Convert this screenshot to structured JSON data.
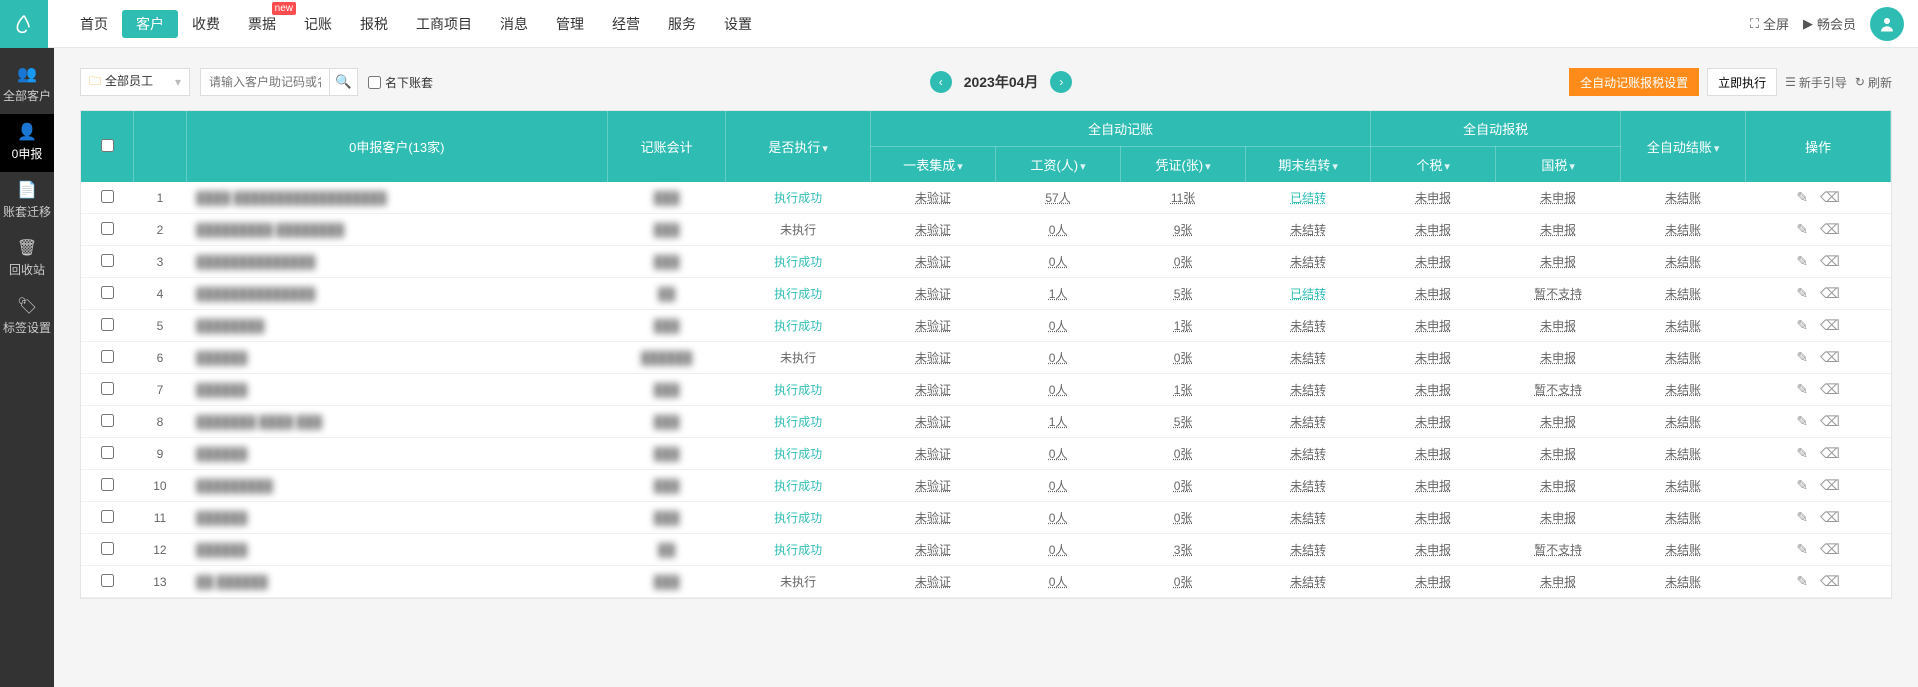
{
  "colors": {
    "primary": "#2fbdb3",
    "accent": "#ff8c1a",
    "sidebar_bg": "#333333",
    "badge": "#ff4d4f"
  },
  "topnav": {
    "items": [
      "首页",
      "客户",
      "收费",
      "票据",
      "记账",
      "报税",
      "工商项目",
      "消息",
      "管理",
      "经营",
      "服务",
      "设置"
    ],
    "active_index": 1,
    "new_badge_index": 3,
    "new_badge_text": "new",
    "fullscreen": "全屏",
    "member": "畅会员"
  },
  "sidebar": {
    "items": [
      {
        "icon": "👥",
        "label": "全部客户"
      },
      {
        "icon": "👤",
        "label": "0申报"
      },
      {
        "icon": "📄",
        "label": "账套迁移"
      },
      {
        "icon": "🗑",
        "label": "回收站"
      },
      {
        "icon": "🏷",
        "label": "标签设置"
      }
    ],
    "active_index": 1
  },
  "toolbar": {
    "employee_select": "全部员工",
    "search_placeholder": "请输入客户助记码或名称",
    "under_name_checkbox": "名下账套",
    "period": "2023年04月",
    "auto_setting_btn": "全自动记账报税设置",
    "exec_now_btn": "立即执行",
    "newbie_guide": "新手引导",
    "refresh": "刷新"
  },
  "table": {
    "header": {
      "customer": "0申报客户(13家)",
      "accountant": "记账会计",
      "exec": "是否执行",
      "group_jz": "全自动记账",
      "group_bs": "全自动报税",
      "group_jiezhang": "全自动结账",
      "op": "操作",
      "sub": {
        "yibiao": "一表集成",
        "gongzi": "工资(人)",
        "pingzheng": "凭证(张)",
        "qimo": "期末结转",
        "geshui": "个税",
        "guoshui": "国税"
      }
    },
    "rows": [
      {
        "idx": 1,
        "name": "████ ██████████████████",
        "acct": "███",
        "exec": "执行成功",
        "exec_cls": "status-success",
        "yibiao": "未验证",
        "gz": "57人",
        "pz": "11张",
        "qimo": "已结转",
        "qimo_cls": "status-done",
        "gs": "未申报",
        "guo": "未申报",
        "jz": "未结账"
      },
      {
        "idx": 2,
        "name": "█████████ ████████",
        "acct": "███",
        "exec": "未执行",
        "exec_cls": "",
        "yibiao": "未验证",
        "gz": "0人",
        "pz": "9张",
        "qimo": "未结转",
        "qimo_cls": "cell-link",
        "gs": "未申报",
        "guo": "未申报",
        "jz": "未结账"
      },
      {
        "idx": 3,
        "name": "██████████████",
        "acct": "███",
        "exec": "执行成功",
        "exec_cls": "status-success",
        "yibiao": "未验证",
        "gz": "0人",
        "pz": "0张",
        "qimo": "未结转",
        "qimo_cls": "cell-link",
        "gs": "未申报",
        "guo": "未申报",
        "jz": "未结账"
      },
      {
        "idx": 4,
        "name": "██████████████",
        "acct": "██",
        "exec": "执行成功",
        "exec_cls": "status-success",
        "yibiao": "未验证",
        "gz": "1人",
        "pz": "5张",
        "qimo": "已结转",
        "qimo_cls": "status-done",
        "gs": "未申报",
        "guo": "暂不支持",
        "jz": "未结账"
      },
      {
        "idx": 5,
        "name": "████████",
        "acct": "███",
        "exec": "执行成功",
        "exec_cls": "status-success",
        "yibiao": "未验证",
        "gz": "0人",
        "pz": "1张",
        "qimo": "未结转",
        "qimo_cls": "cell-link",
        "gs": "未申报",
        "guo": "未申报",
        "jz": "未结账"
      },
      {
        "idx": 6,
        "name": "██████",
        "acct": "██████",
        "exec": "未执行",
        "exec_cls": "",
        "yibiao": "未验证",
        "gz": "0人",
        "pz": "0张",
        "qimo": "未结转",
        "qimo_cls": "cell-link",
        "gs": "未申报",
        "guo": "未申报",
        "jz": "未结账"
      },
      {
        "idx": 7,
        "name": "██████",
        "acct": "███",
        "exec": "执行成功",
        "exec_cls": "status-success",
        "yibiao": "未验证",
        "gz": "0人",
        "pz": "1张",
        "qimo": "未结转",
        "qimo_cls": "cell-link",
        "gs": "未申报",
        "guo": "暂不支持",
        "jz": "未结账"
      },
      {
        "idx": 8,
        "name": "███████ ████ ███",
        "acct": "███",
        "exec": "执行成功",
        "exec_cls": "status-success",
        "yibiao": "未验证",
        "gz": "1人",
        "pz": "5张",
        "qimo": "未结转",
        "qimo_cls": "cell-link",
        "gs": "未申报",
        "guo": "未申报",
        "jz": "未结账"
      },
      {
        "idx": 9,
        "name": "██████",
        "acct": "███",
        "exec": "执行成功",
        "exec_cls": "status-success",
        "yibiao": "未验证",
        "gz": "0人",
        "pz": "0张",
        "qimo": "未结转",
        "qimo_cls": "cell-link",
        "gs": "未申报",
        "guo": "未申报",
        "jz": "未结账"
      },
      {
        "idx": 10,
        "name": "█████████",
        "acct": "███",
        "exec": "执行成功",
        "exec_cls": "status-success",
        "yibiao": "未验证",
        "gz": "0人",
        "pz": "0张",
        "qimo": "未结转",
        "qimo_cls": "cell-link",
        "gs": "未申报",
        "guo": "未申报",
        "jz": "未结账"
      },
      {
        "idx": 11,
        "name": "██████",
        "acct": "███",
        "exec": "执行成功",
        "exec_cls": "status-success",
        "yibiao": "未验证",
        "gz": "0人",
        "pz": "0张",
        "qimo": "未结转",
        "qimo_cls": "cell-link",
        "gs": "未申报",
        "guo": "未申报",
        "jz": "未结账"
      },
      {
        "idx": 12,
        "name": "██████",
        "acct": "██",
        "exec": "执行成功",
        "exec_cls": "status-success",
        "yibiao": "未验证",
        "gz": "0人",
        "pz": "3张",
        "qimo": "未结转",
        "qimo_cls": "cell-link",
        "gs": "未申报",
        "guo": "暂不支持",
        "jz": "未结账"
      },
      {
        "idx": 13,
        "name": "██ ██████",
        "acct": "███",
        "exec": "未执行",
        "exec_cls": "",
        "yibiao": "未验证",
        "gz": "0人",
        "pz": "0张",
        "qimo": "未结转",
        "qimo_cls": "cell-link",
        "gs": "未申报",
        "guo": "未申报",
        "jz": "未结账"
      }
    ]
  }
}
